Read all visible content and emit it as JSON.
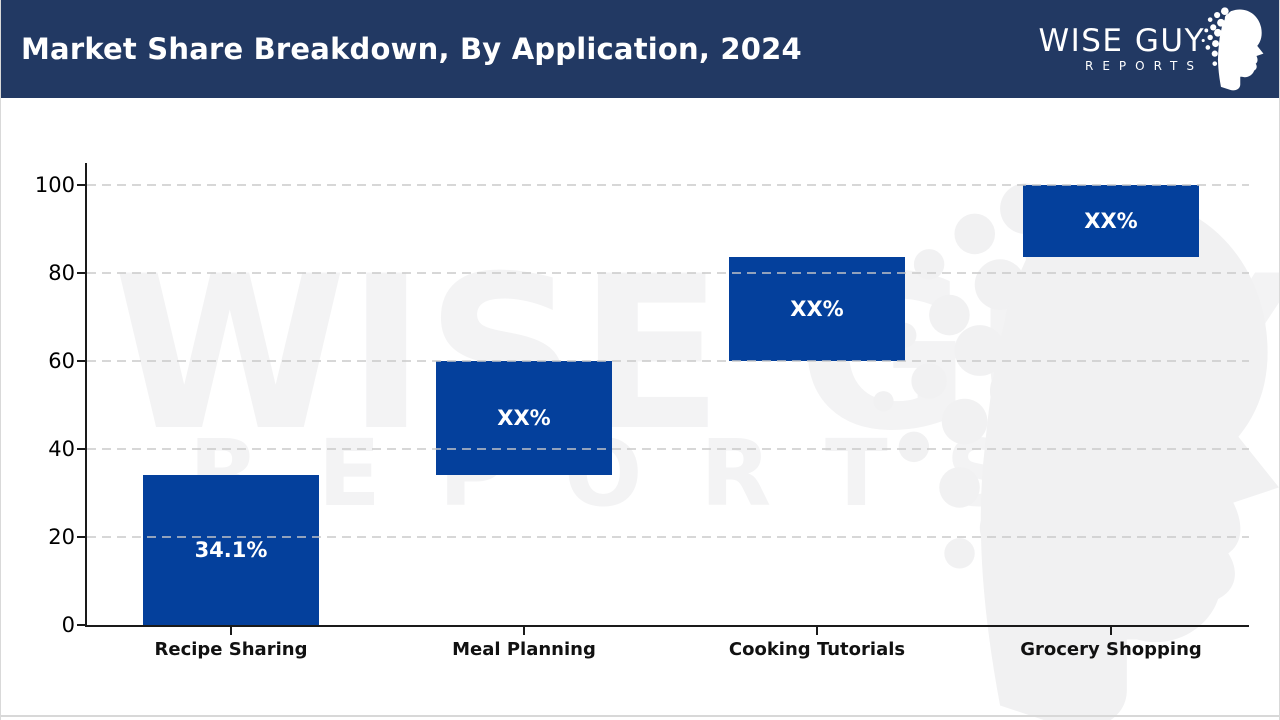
{
  "header": {
    "title": "Market Share Breakdown, By Application, 2024",
    "logo": {
      "line1": "WISE GUY",
      "line2": "REPORTS"
    }
  },
  "watermark": {
    "line1": "WISE GUY",
    "line2": "REPORTS"
  },
  "colors": {
    "header_bg": "#223963",
    "bar": "#04409c",
    "bar_label": "#ffffff",
    "grid": "#c8c8c8",
    "axis": "#1a1a1a",
    "watermark": "#f3f3f4"
  },
  "chart_data": {
    "type": "bar",
    "subtype": "waterfall",
    "title": "Market Share Breakdown, By Application, 2024",
    "categories": [
      "Recipe Sharing",
      "Meal Planning",
      "Cooking Tutorials",
      "Grocery Shopping"
    ],
    "segments": [
      {
        "category": "Recipe Sharing",
        "start": 0,
        "end": 34.1,
        "label": "34.1%"
      },
      {
        "category": "Meal Planning",
        "start": 34.1,
        "end": 60,
        "label": "XX%"
      },
      {
        "category": "Cooking Tutorials",
        "start": 60,
        "end": 83.6,
        "label": "XX%"
      },
      {
        "category": "Grocery Shopping",
        "start": 83.7,
        "end": 100,
        "label": "XX%"
      }
    ],
    "xlabel": "",
    "ylabel": "",
    "ylim": [
      0,
      100
    ],
    "yticks": [
      0,
      20,
      40,
      60,
      80,
      100
    ],
    "grid": "horizontal-dashed",
    "legend": "none"
  }
}
